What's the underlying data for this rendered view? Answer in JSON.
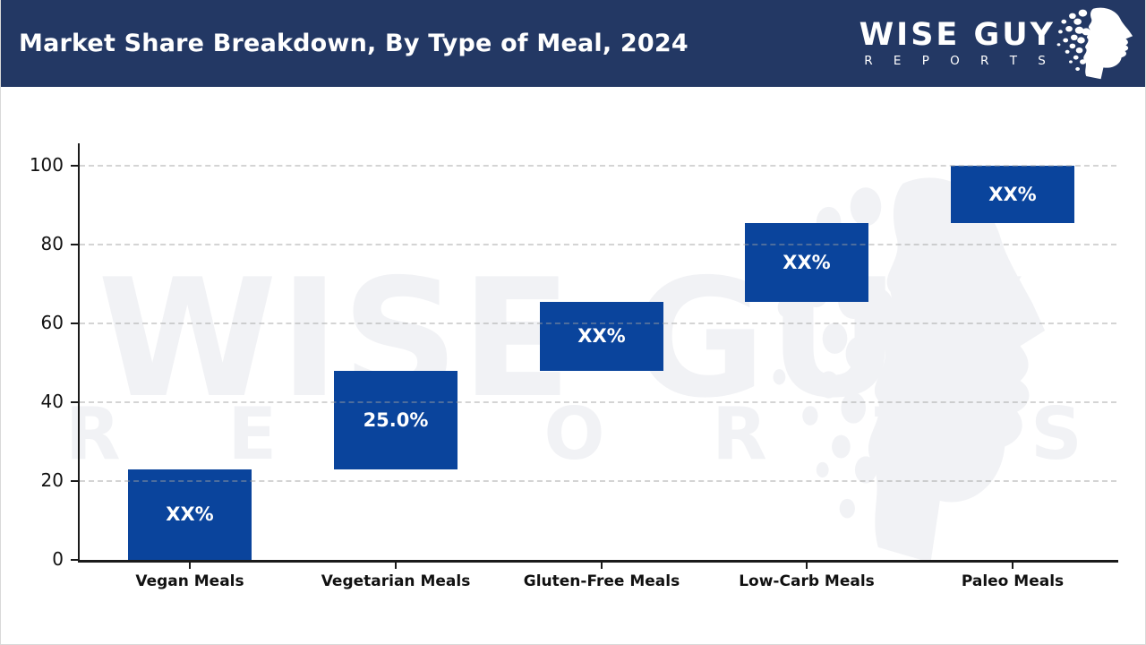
{
  "header": {
    "title": "Market Share Breakdown, By Type of Meal, 2024",
    "logo": {
      "name_line": "WISE GUY",
      "sub_line": "R E P O R T S"
    }
  },
  "watermark": {
    "name_line": "WISE GUY",
    "sub_line": "R E P O R T S"
  },
  "chart_data": {
    "type": "bar",
    "subtype": "floating-segment-bar (stacked waterfall of market share)",
    "title": "Market Share Breakdown, By Type of Meal, 2024",
    "categories": [
      "Vegan Meals",
      "Vegetarian Meals",
      "Gluten-Free Meals",
      "Low-Carb Meals",
      "Paleo Meals"
    ],
    "segments": [
      {
        "category": "Vegan Meals",
        "start": 0,
        "end": 23,
        "height": 23,
        "label": "XX%"
      },
      {
        "category": "Vegetarian Meals",
        "start": 23,
        "end": 48,
        "height": 25,
        "label": "25.0%"
      },
      {
        "category": "Gluten-Free Meals",
        "start": 48,
        "end": 65.5,
        "height": 17.5,
        "label": "XX%"
      },
      {
        "category": "Low-Carb Meals",
        "start": 65.5,
        "end": 85.5,
        "height": 20,
        "label": "XX%"
      },
      {
        "category": "Paleo Meals",
        "start": 85.5,
        "end": 100,
        "height": 14.5,
        "label": "XX%"
      }
    ],
    "xlabel": "",
    "ylabel": "",
    "yticks": [
      0,
      20,
      40,
      60,
      80,
      100
    ],
    "ylim": [
      0,
      105
    ],
    "grid": "horizontal dashed gridlines drawn over bars",
    "legend": "none",
    "bar_color": "#0a449c"
  },
  "colors": {
    "header_bg": "#233864",
    "bar": "#0a449c",
    "bar_label": "#ffffff",
    "axis": "#1a1a1a",
    "grid": "#d9d9d9",
    "watermark": "#f1f2f5",
    "page_border": "#d9d9d9"
  }
}
